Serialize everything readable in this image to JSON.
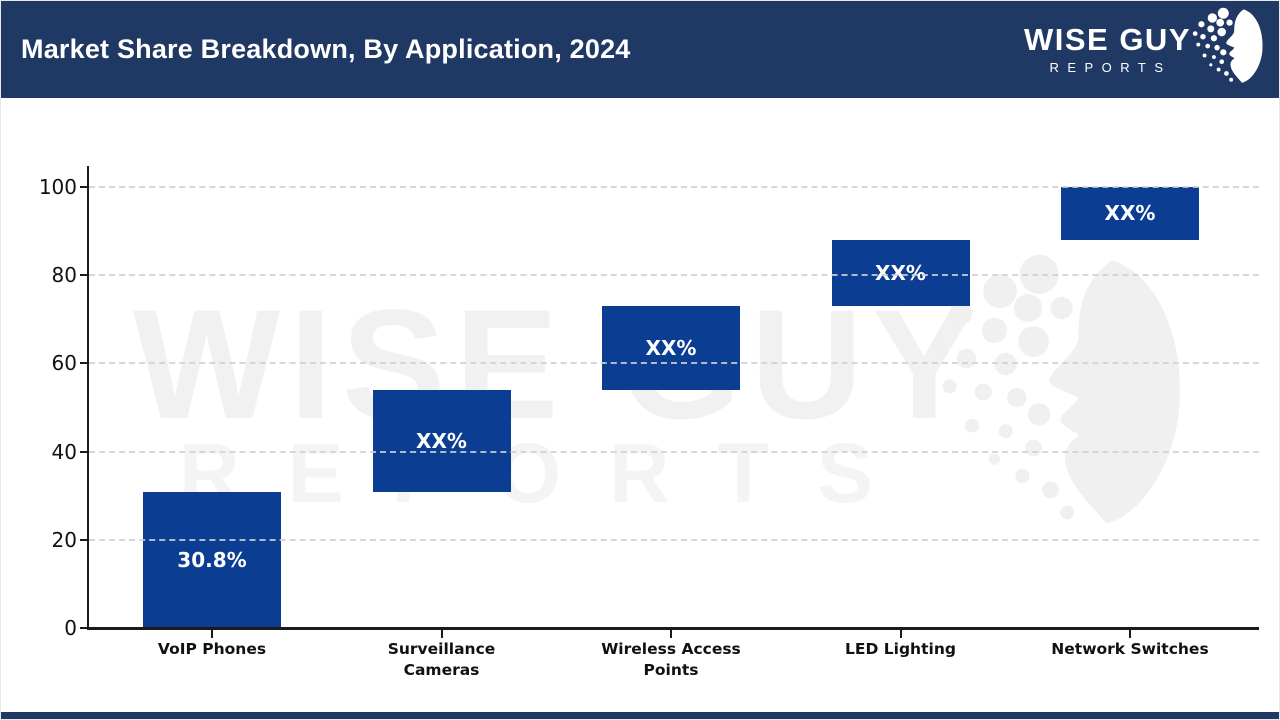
{
  "header": {
    "title": "Market Share Breakdown, By Application, 2024",
    "bg_color": "#1f3864",
    "logo": {
      "line1": "WISE GUY",
      "line2": "REPORTS"
    }
  },
  "chart_data": {
    "type": "bar",
    "subtype": "waterfall",
    "title": "Market Share Breakdown, By Application, 2024",
    "xlabel": "",
    "ylabel": "",
    "categories": [
      "VoIP Phones",
      "Surveillance Cameras",
      "Wireless Access Points",
      "LED Lighting",
      "Network Switches"
    ],
    "segments": [
      {
        "category": "VoIP Phones",
        "start": 0,
        "end": 30.8,
        "display": "30.8%"
      },
      {
        "category": "Surveillance Cameras",
        "start": 30.8,
        "end": 54,
        "display": "XX%"
      },
      {
        "category": "Wireless Access Points",
        "start": 54,
        "end": 73,
        "display": "XX%"
      },
      {
        "category": "LED Lighting",
        "start": 73,
        "end": 88,
        "display": "XX%"
      },
      {
        "category": "Network Switches",
        "start": 88,
        "end": 100,
        "display": "XX%"
      }
    ],
    "yticks": [
      0,
      20,
      40,
      60,
      80,
      100
    ],
    "ylim": [
      0,
      105
    ],
    "bar_color": "#0b3e92",
    "grid": "horizontal dashed, drawn over bars",
    "legend_position": "none"
  },
  "watermark": {
    "line1": "WISE GUY",
    "line2": "REPORTS"
  },
  "footer": {
    "bar_color": "#1f3864"
  }
}
